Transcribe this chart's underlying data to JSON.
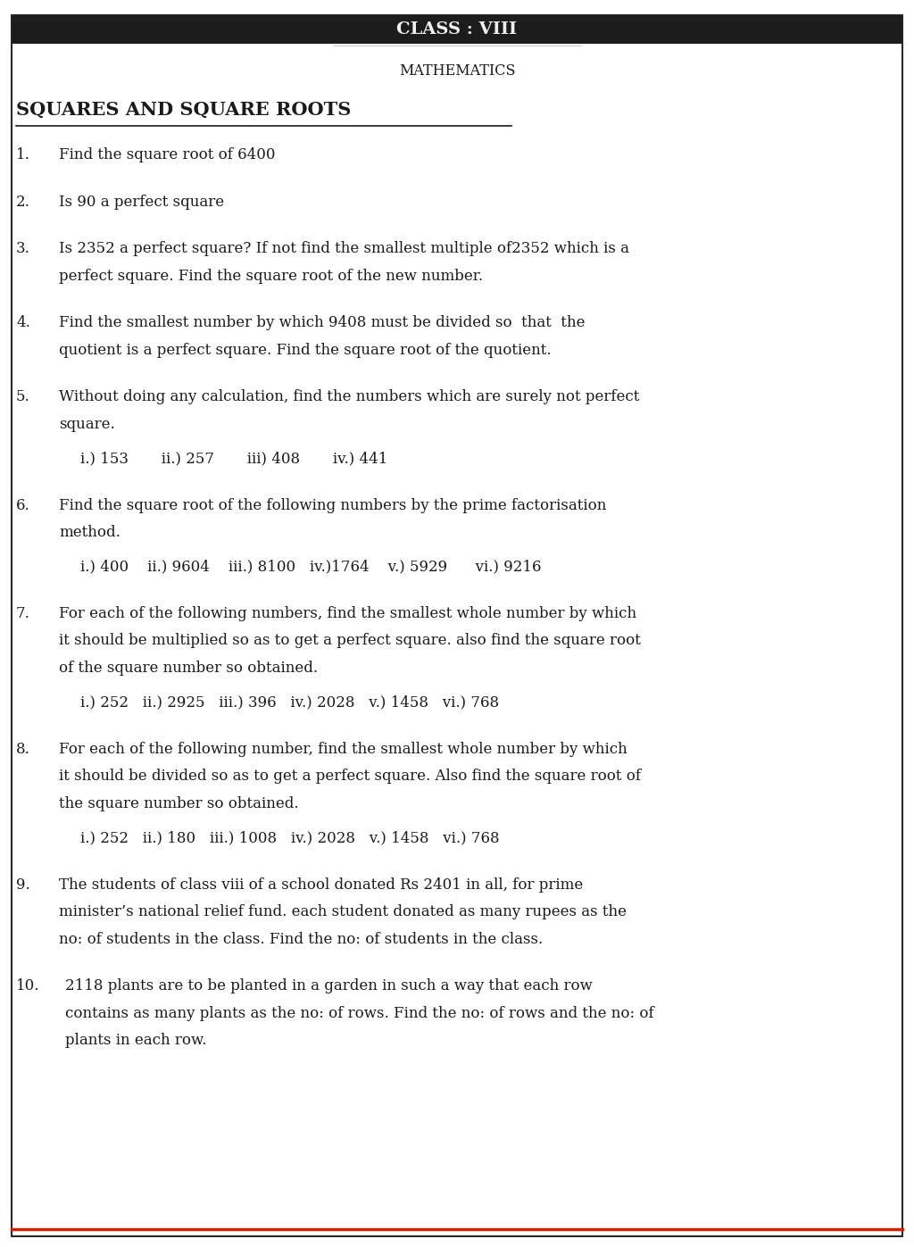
{
  "bg_color": "#ffffff",
  "border_color": "#2a2a2a",
  "header_line1": "CLASS : VIII",
  "header_line2": "MATHEMATICS",
  "section_title": "SQUARES AND SQUARE ROOTS",
  "questions": [
    {
      "num": "1.",
      "lines": [
        "Find the square root of 6400"
      ]
    },
    {
      "num": "2.",
      "lines": [
        "Is 90 a perfect square"
      ]
    },
    {
      "num": "3.",
      "lines": [
        "Is 2352 a perfect square? If not find the smallest multiple of2352 which is a",
        "perfect square. Find the square root of the new number."
      ]
    },
    {
      "num": "4.",
      "lines": [
        "Find the smallest number by which 9408 must be divided so  that  the",
        "quotient is a perfect square. Find the square root of the quotient."
      ]
    },
    {
      "num": "5.",
      "lines": [
        "Without doing any calculation, find the numbers which are surely not perfect",
        "square.",
        "SUB:i.) 153       ii.) 257       iii) 408       iv.) 441"
      ]
    },
    {
      "num": "6.",
      "lines": [
        "Find the square root of the following numbers by the prime factorisation",
        "method.",
        "SUB:i.) 400    ii.) 9604    iii.) 8100   iv.)1764    v.) 5929      vi.) 9216"
      ]
    },
    {
      "num": "7.",
      "lines": [
        "For each of the following numbers, find the smallest whole number by which",
        "it should be multiplied so as to get a perfect square. also find the square root",
        "of the square number so obtained.",
        "SUB:i.) 252   ii.) 2925   iii.) 396   iv.) 2028   v.) 1458   vi.) 768"
      ]
    },
    {
      "num": "8.",
      "lines": [
        "For each of the following number, find the smallest whole number by which",
        "it should be divided so as to get a perfect square. Also find the square root of",
        "the square number so obtained.",
        "SUB:i.) 252   ii.) 180   iii.) 1008   iv.) 2028   v.) 1458   vi.) 768"
      ]
    },
    {
      "num": "9.",
      "lines": [
        "The students of class viii of a school donated Rs 2401 in all, for prime",
        "minister’s national relief fund. each student donated as many rupees as the",
        "no: of students in the class. Find the no: of students in the class."
      ]
    },
    {
      "num": "10.",
      "lines": [
        "2118 plants are to be planted in a garden in such a way that each row",
        "contains as many plants as the no: of rows. Find the no: of rows and the no: of",
        "plants in each row."
      ]
    }
  ],
  "header1_fontsize": 14,
  "header2_fontsize": 11.5,
  "section_fontsize": 15,
  "question_fontsize": 12,
  "text_color": "#1a1a1a",
  "header_underline_color": "#000000",
  "top_bar_color": "#1c1c1c",
  "bottom_line_color": "#cc2200"
}
